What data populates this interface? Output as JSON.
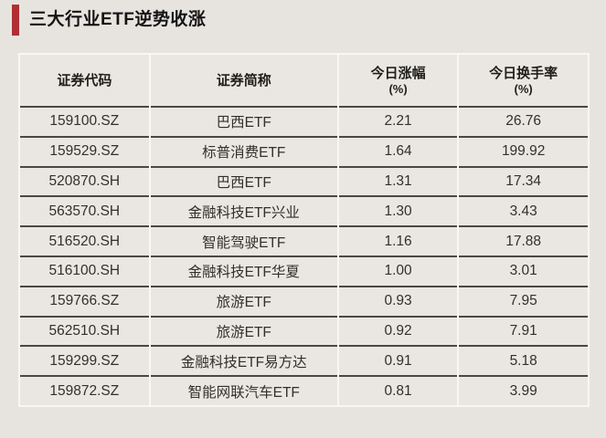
{
  "colors": {
    "accent_red": "#b02f35",
    "page_background": "#e7e4df",
    "cell_background": "#eae7e2",
    "row_separator": "#4a4843",
    "column_separator": "#f8f7f3"
  },
  "chart_data": {
    "type": "table",
    "title": "三大行业ETF逆势收涨",
    "columns": [
      {
        "key": "code",
        "label": "证券代码",
        "unit": ""
      },
      {
        "key": "name",
        "label": "证券简称",
        "unit": ""
      },
      {
        "key": "change",
        "label": "今日涨幅",
        "unit": "(%)"
      },
      {
        "key": "turnover",
        "label": "今日换手率",
        "unit": "(%)"
      }
    ],
    "column_widths_pct": [
      22.9,
      33.1,
      21.1,
      22.9
    ],
    "rows": [
      [
        "159100.SZ",
        "巴西ETF",
        "2.21",
        "26.76"
      ],
      [
        "159529.SZ",
        "标普消费ETF",
        "1.64",
        "199.92"
      ],
      [
        "520870.SH",
        "巴西ETF",
        "1.31",
        "17.34"
      ],
      [
        "563570.SH",
        "金融科技ETF兴业",
        "1.30",
        "3.43"
      ],
      [
        "516520.SH",
        "智能驾驶ETF",
        "1.16",
        "17.88"
      ],
      [
        "516100.SH",
        "金融科技ETF华夏",
        "1.00",
        "3.01"
      ],
      [
        "159766.SZ",
        "旅游ETF",
        "0.93",
        "7.95"
      ],
      [
        "562510.SH",
        "旅游ETF",
        "0.92",
        "7.91"
      ],
      [
        "159299.SZ",
        "金融科技ETF易方达",
        "0.91",
        "5.18"
      ],
      [
        "159872.SZ",
        "智能网联汽车ETF",
        "0.81",
        "3.99"
      ]
    ]
  }
}
